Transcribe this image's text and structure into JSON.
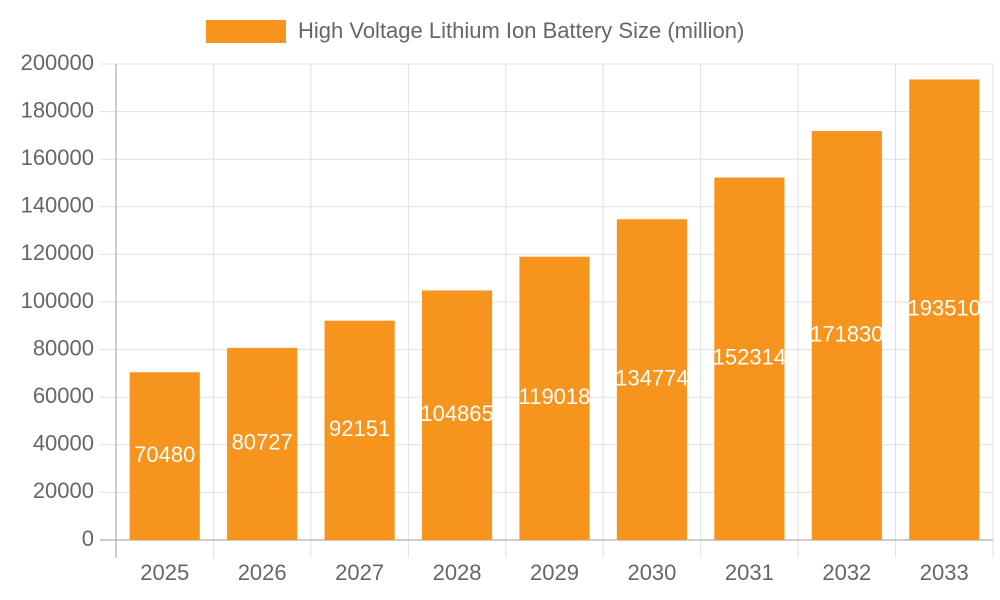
{
  "chart_data": {
    "type": "bar",
    "legend": "High Voltage Lithium Ion Battery Size (million)",
    "categories": [
      "2025",
      "2026",
      "2027",
      "2028",
      "2029",
      "2030",
      "2031",
      "2032",
      "2033"
    ],
    "values": [
      70480,
      80727,
      92151,
      104865,
      119018,
      134774,
      152314,
      171830,
      193510
    ],
    "color": "#f7941d",
    "ylim": [
      0,
      200000
    ],
    "yticks": [
      0,
      20000,
      40000,
      60000,
      80000,
      100000,
      120000,
      140000,
      160000,
      180000,
      200000
    ],
    "grid": true,
    "legend_position": "top"
  }
}
